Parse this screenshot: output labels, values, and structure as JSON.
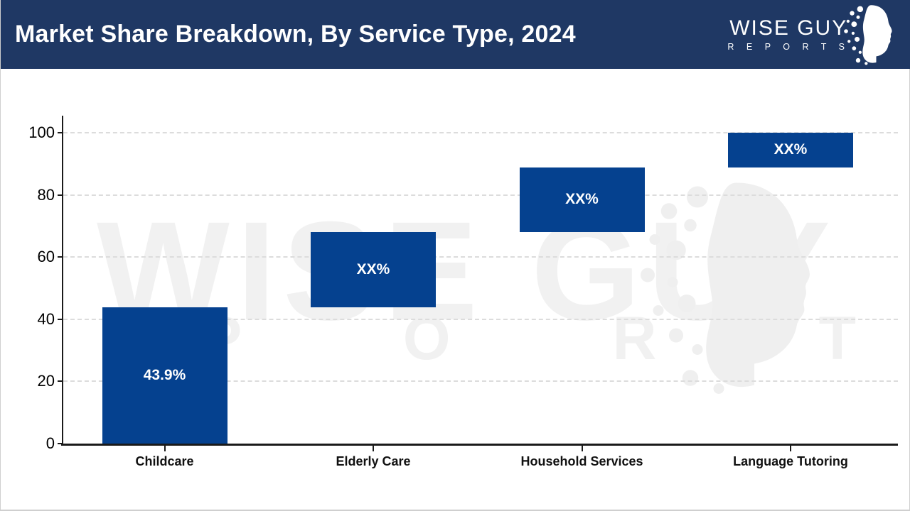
{
  "header": {
    "title": "Market Share Breakdown, By Service Type, 2024",
    "bg_color": "#1f3864",
    "logo": {
      "name": "WISE GUY",
      "sub": "R E P O R T S"
    }
  },
  "watermark": {
    "line1": "WISE GU",
    "letter_y": "Y",
    "line2": "P O R T S"
  },
  "chart_data": {
    "type": "bar",
    "subtype": "waterfall",
    "title": "Market Share Breakdown, By Service Type, 2024",
    "categories": [
      "Childcare",
      "Elderly Care",
      "Household Services",
      "Language Tutoring"
    ],
    "segments": [
      {
        "category": "Childcare",
        "start": 0,
        "end": 43.9,
        "label": "43.9%"
      },
      {
        "category": "Elderly Care",
        "start": 43.9,
        "end": 68,
        "label": "XX%"
      },
      {
        "category": "Household Services",
        "start": 68,
        "end": 88.9,
        "label": "XX%"
      },
      {
        "category": "Language Tutoring",
        "start": 88.9,
        "end": 100,
        "label": "XX%"
      }
    ],
    "yticks": [
      0,
      20,
      40,
      60,
      80,
      100
    ],
    "ylim": [
      0,
      105
    ],
    "xlabel": "",
    "ylabel": "",
    "bar_color": "#05418f",
    "grid": "dashed-horizontal",
    "legend": "none"
  }
}
